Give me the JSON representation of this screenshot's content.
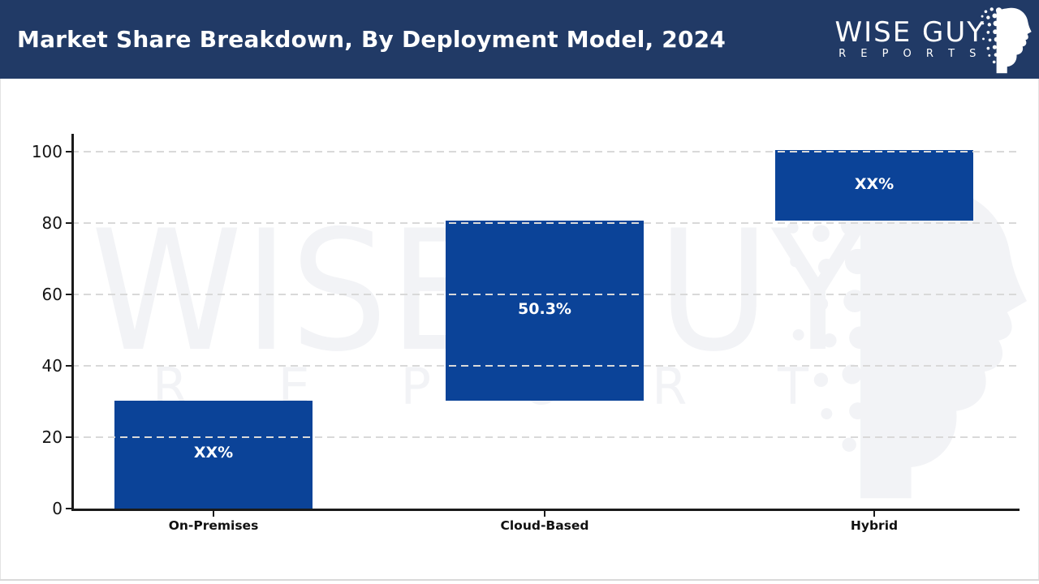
{
  "header": {
    "title": "Market Share Breakdown, By Deployment Model, 2024",
    "logo": {
      "name": "WISE GUY",
      "tagline": "R E P O R T S"
    }
  },
  "watermark": {
    "name": "WISE GUY",
    "tagline": "R E P O R T S"
  },
  "chart_data": {
    "type": "bar",
    "subtype": "floating-segment-bars",
    "title": "Market Share Breakdown, By Deployment Model, 2024",
    "categories": [
      "On-Premises",
      "Cloud-Based",
      "Hybrid"
    ],
    "bars": [
      {
        "category": "On-Premises",
        "start": 0,
        "end": 30.3,
        "label": "XX%"
      },
      {
        "category": "Cloud-Based",
        "start": 30.3,
        "end": 80.6,
        "label": "50.3%"
      },
      {
        "category": "Hybrid",
        "start": 80.6,
        "end": 100.5,
        "label": "XX%"
      }
    ],
    "xlabel": "",
    "ylabel": "",
    "yticks": [
      0,
      20,
      40,
      60,
      80,
      100
    ],
    "ylim": [
      0,
      105
    ],
    "grid": "horizontal-dashed-drawn-above-bars",
    "legend": "none",
    "bar_color": "#0b4398",
    "bar_label_color": "#ffffff"
  },
  "colors": {
    "header_bg": "#213a66",
    "title_ink": "#ffffff",
    "bar_blue": "#0b4398",
    "bar_label": "#ffffff",
    "gridline": "#d9d9d9",
    "axis": "#1a1a1a",
    "watermark": "#f2f3f6",
    "edge": "#d9d9d9"
  }
}
